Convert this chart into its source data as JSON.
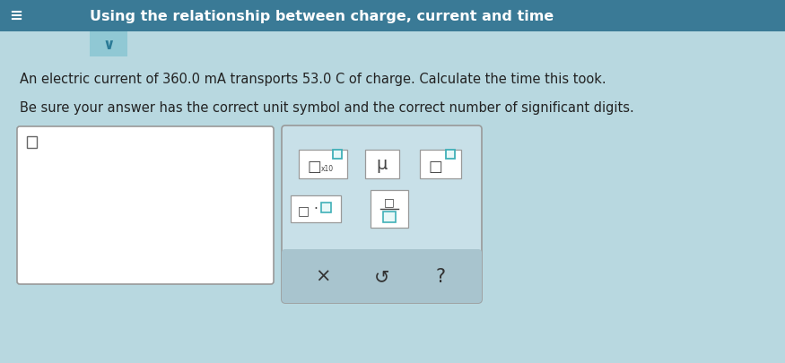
{
  "title": "Using the relationship between charge, current and time",
  "title_bg": "#3a7a96",
  "title_color": "#ffffff",
  "title_fontsize": 11.5,
  "body_bg": "#b8d8e0",
  "line1": "An electric current of 360.0 mA transports 53.0 C of charge. Calculate the time this took.",
  "line2": "Be sure your answer has the correct unit symbol and the correct number of significant digits.",
  "text_fontsize": 10.5,
  "text_color": "#222222",
  "answer_box_bg": "#ffffff",
  "answer_box_border": "#999999",
  "keypad_bg": "#c8e0e8",
  "keypad_border": "#999999",
  "keypad_bottom_bg": "#a8c4ce",
  "btn_bg": "#ffffff",
  "btn_border": "#999999",
  "btn_color_teal": "#40b0b8",
  "hamburger_color": "#ffffff",
  "chevron_color": "#2a7a96",
  "chevron_bg": "#90c8d4"
}
